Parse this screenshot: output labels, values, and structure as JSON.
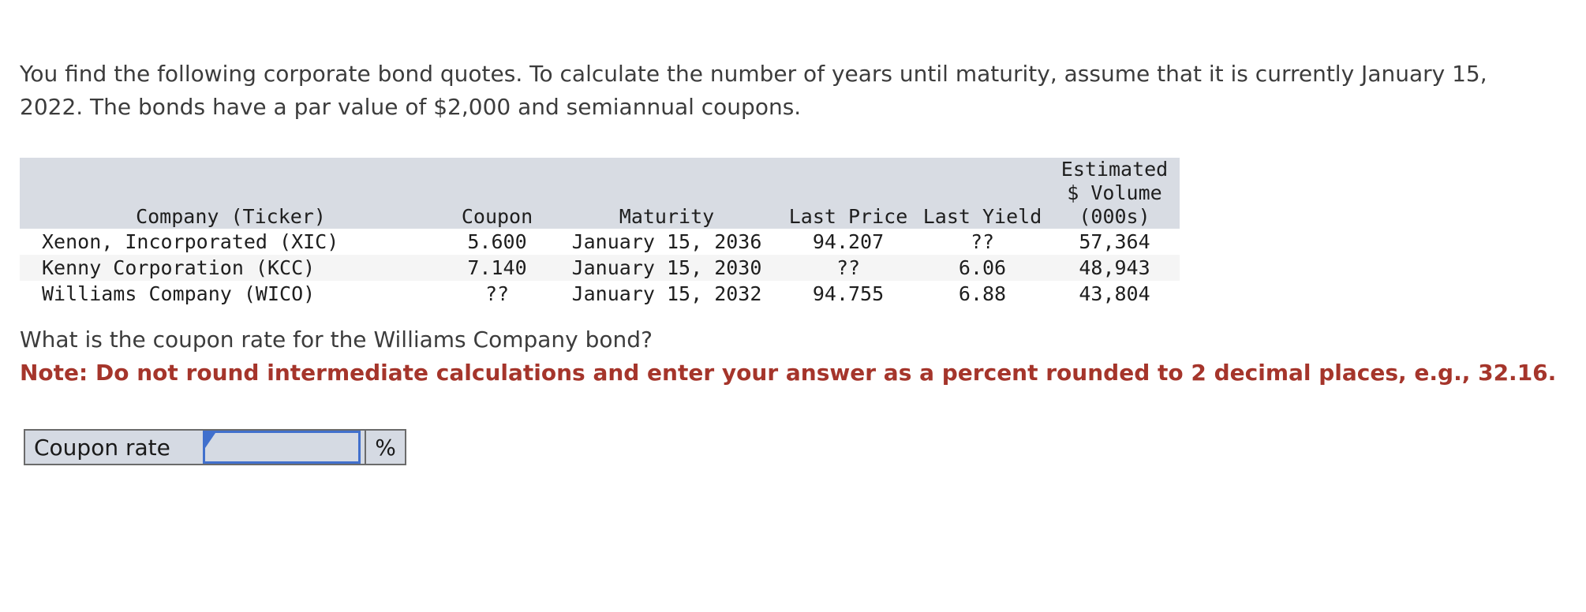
{
  "intro": {
    "line1": "You find the following corporate bond quotes. To calculate the number of years until maturity, assume that it is currently January 15,",
    "line2": "2022. The bonds have a par value of $2,000 and semiannual coupons."
  },
  "table": {
    "headers": {
      "company": "Company (Ticker)",
      "coupon": "Coupon",
      "maturity": "Maturity",
      "last_price": "Last Price",
      "last_yield": "Last Yield",
      "volume_line1": "Estimated",
      "volume_line2": "$ Volume",
      "volume_line3": "(000s)"
    },
    "rows": [
      {
        "company": "Xenon, Incorporated (XIC)",
        "coupon": "5.600",
        "maturity": "January 15, 2036",
        "last_price": "94.207",
        "last_yield": "??",
        "volume": "57,364"
      },
      {
        "company": "Kenny Corporation (KCC)",
        "coupon": "7.140",
        "maturity": "January 15, 2030",
        "last_price": "??",
        "last_yield": "6.06",
        "volume": "48,943"
      },
      {
        "company": "Williams Company (WICO)",
        "coupon": "??",
        "maturity": "January 15, 2032",
        "last_price": "94.755",
        "last_yield": "6.88",
        "volume": "43,804"
      }
    ]
  },
  "question": {
    "text": "What is the coupon rate for the Williams Company bond?",
    "note": "Note: Do not round intermediate calculations and enter your answer as a percent rounded to 2 decimal places, e.g., 32.16."
  },
  "answer": {
    "label": "Coupon rate",
    "value": "",
    "unit": "%"
  },
  "colors": {
    "header_bg": "#d8dce3",
    "stripe_bg": "#f5f5f5",
    "note_red": "#a5352b",
    "input_blue": "#4170cd",
    "cell_bg": "#d5dae3"
  }
}
